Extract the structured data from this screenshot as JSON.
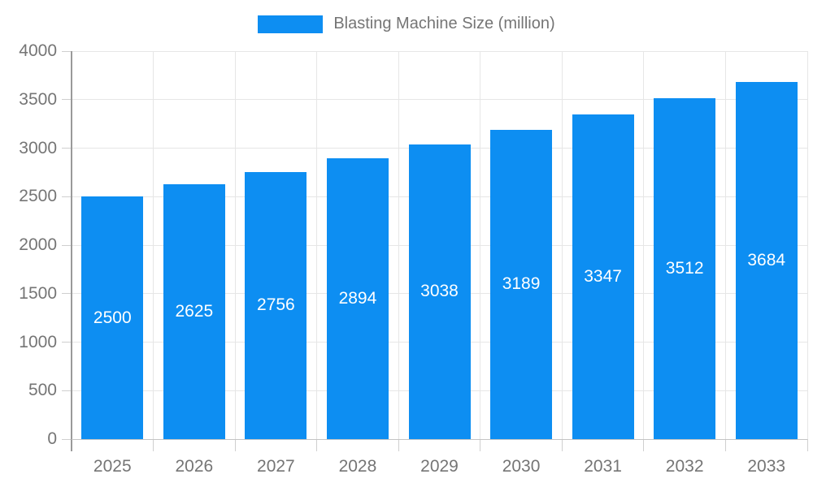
{
  "chart_data": {
    "type": "bar",
    "title": "Blasting Machine Size (million)",
    "categories": [
      "2025",
      "2026",
      "2027",
      "2028",
      "2029",
      "2030",
      "2031",
      "2032",
      "2033"
    ],
    "values": [
      2500,
      2625,
      2756,
      2894,
      3038,
      3189,
      3347,
      3512,
      3684
    ],
    "xlabel": "",
    "ylabel": "",
    "ylim": [
      0,
      4000
    ],
    "ytick_step": 500,
    "ytick_labels": [
      "0",
      "500",
      "1000",
      "1500",
      "2000",
      "2500",
      "3000",
      "3500",
      "4000"
    ],
    "grid": true,
    "legend_position": "top",
    "bar_labels_inside": true,
    "colors": {
      "bar": "#0d8ef2",
      "bar_label": "#ffffff",
      "grid": "#e6e6e6",
      "axis": "#9a9a9a",
      "tick_text": "#757575",
      "legend_text": "#757575",
      "background": "#ffffff"
    }
  }
}
